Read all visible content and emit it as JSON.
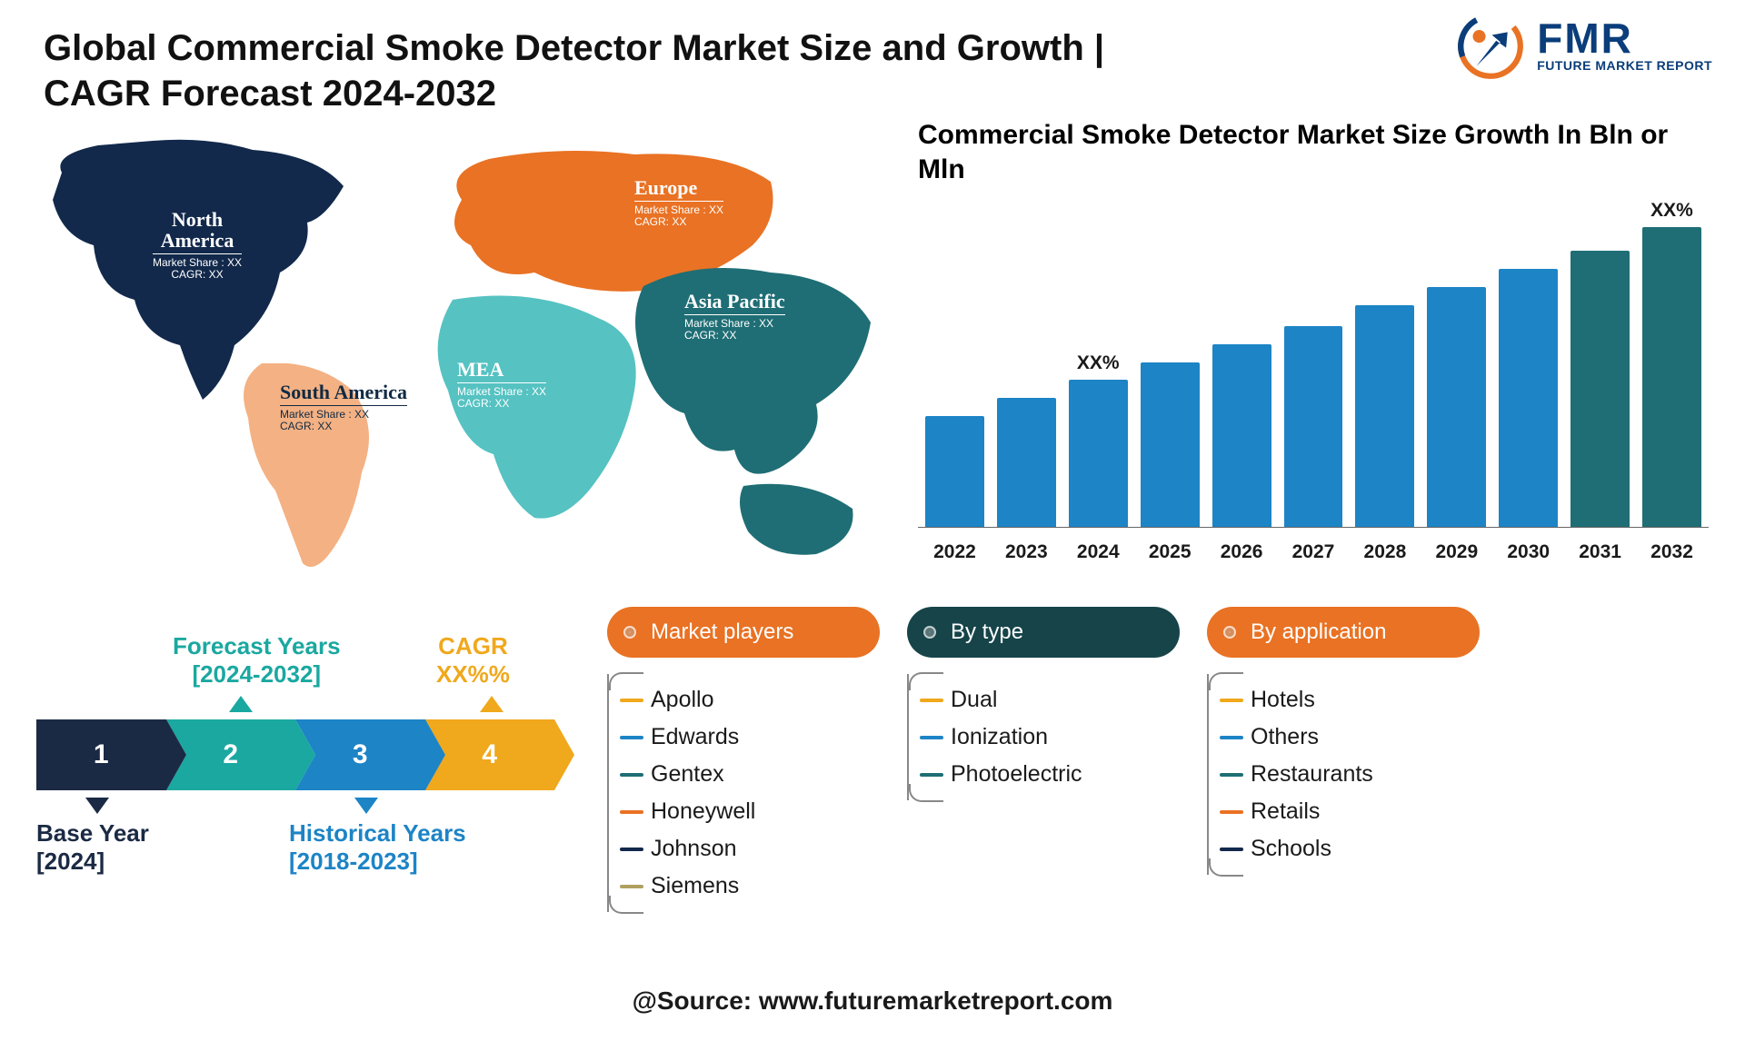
{
  "title": "Global Commercial Smoke Detector Market Size and Growth | CAGR Forecast 2024-2032",
  "logo": {
    "big": "FMR",
    "sub": "FUTURE MARKET REPORT",
    "orange": "#e97224",
    "blue": "#0a3d7a"
  },
  "source": "@Source: www.futuremarketreport.com",
  "colors": {
    "navy": "#12294b",
    "orange": "#e97224",
    "teal": "#56c2c2",
    "darkteal": "#1f6e75",
    "tealgreen": "#1aa8a0",
    "blue": "#1d84c6",
    "amber": "#f0a81c",
    "bar": "#1d84c6",
    "bar_dark": "#1f6e75",
    "pill_orange": "#e97224",
    "pill_dark": "#164449",
    "tick_cycle": [
      "#f0a81c",
      "#1d84c6",
      "#1f6e75",
      "#e97224",
      "#12294b",
      "#b0a060"
    ]
  },
  "map_regions": {
    "na": {
      "name": "North\nAmerica",
      "share": "Market Share : XX",
      "cagr": "CAGR: XX"
    },
    "sa": {
      "name": "South America",
      "share": "Market Share : XX",
      "cagr": "CAGR: XX"
    },
    "eu": {
      "name": "Europe",
      "share": "Market Share : XX",
      "cagr": "CAGR: XX"
    },
    "mea": {
      "name": "MEA",
      "share": "Market Share : XX",
      "cagr": "CAGR: XX"
    },
    "ap": {
      "name": "Asia Pacific",
      "share": "Market Share : XX",
      "cagr": "CAGR: XX"
    }
  },
  "chart": {
    "title": "Commercial Smoke Detector Market Size Growth In Bln or Mln",
    "years": [
      "2022",
      "2023",
      "2024",
      "2025",
      "2026",
      "2027",
      "2028",
      "2029",
      "2030",
      "2031",
      "2032"
    ],
    "values_pct": [
      37,
      43,
      49,
      55,
      61,
      67,
      74,
      80,
      86,
      92,
      100
    ],
    "dark_last_n": 2,
    "annotations": {
      "2": "XX%",
      "10": "XX%"
    }
  },
  "timeline": {
    "chevrons": [
      {
        "n": "1",
        "color": "#1b2a44"
      },
      {
        "n": "2",
        "color": "#1aa8a0"
      },
      {
        "n": "3",
        "color": "#1d84c6"
      },
      {
        "n": "4",
        "color": "#f0a81c"
      }
    ],
    "labels": {
      "forecast": {
        "text": "Forecast Years",
        "sub": "[2024-2032]",
        "color": "#1aa8a0"
      },
      "cagr": {
        "text": "CAGR",
        "sub": "XX%%",
        "color": "#f0a81c"
      },
      "base": {
        "text": "Base Year",
        "sub": "[2024]",
        "color": "#1b2a44"
      },
      "hist": {
        "text": "Historical Years",
        "sub": "[2018-2023]",
        "color": "#1d84c6"
      }
    }
  },
  "categories": [
    {
      "title": "Market players",
      "pill_color": "#e97224",
      "items": [
        "Apollo",
        "Edwards",
        "Gentex",
        "Honeywell",
        "Johnson",
        "Siemens"
      ]
    },
    {
      "title": "By type",
      "pill_color": "#164449",
      "items": [
        "Dual",
        "Ionization",
        "Photoelectric"
      ]
    },
    {
      "title": "By application",
      "pill_color": "#e97224",
      "items": [
        "Hotels",
        "Others",
        "Restaurants",
        "Retails",
        "Schools"
      ]
    }
  ]
}
